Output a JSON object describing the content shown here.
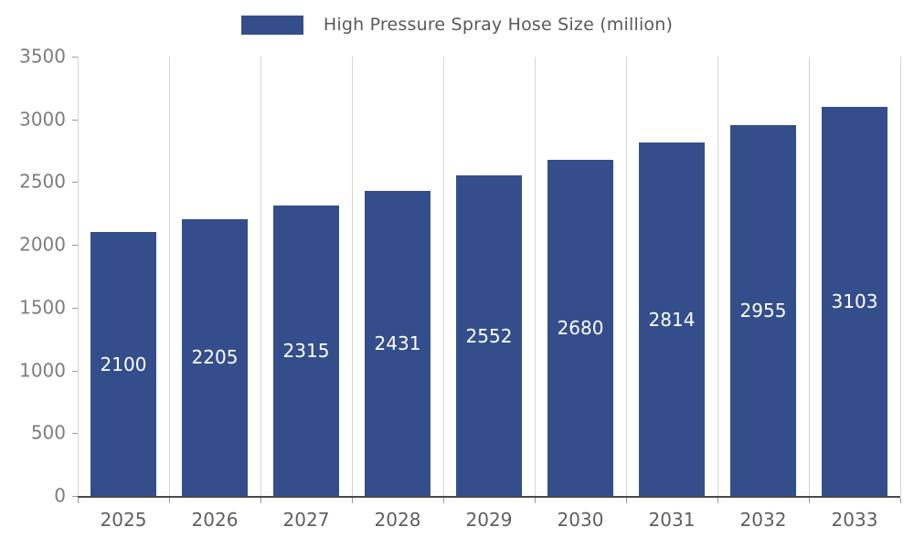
{
  "chart_data": {
    "type": "bar",
    "title": "High Pressure Spray Hose Size (million)",
    "categories": [
      "2025",
      "2026",
      "2027",
      "2028",
      "2029",
      "2030",
      "2031",
      "2032",
      "2033"
    ],
    "values": [
      2100,
      2205,
      2315,
      2431,
      2552,
      2680,
      2814,
      2955,
      3103
    ],
    "xlabel": "",
    "ylabel": "",
    "ylim": [
      0,
      3500
    ],
    "yticks": [
      0,
      500,
      1000,
      1500,
      2000,
      2500,
      3000,
      3500
    ],
    "grid": "vertical",
    "legend_position": "top-center",
    "bar_color": "#344e8c",
    "bar_label_color": "#ffffff",
    "value_labels_inside_bars": true
  }
}
